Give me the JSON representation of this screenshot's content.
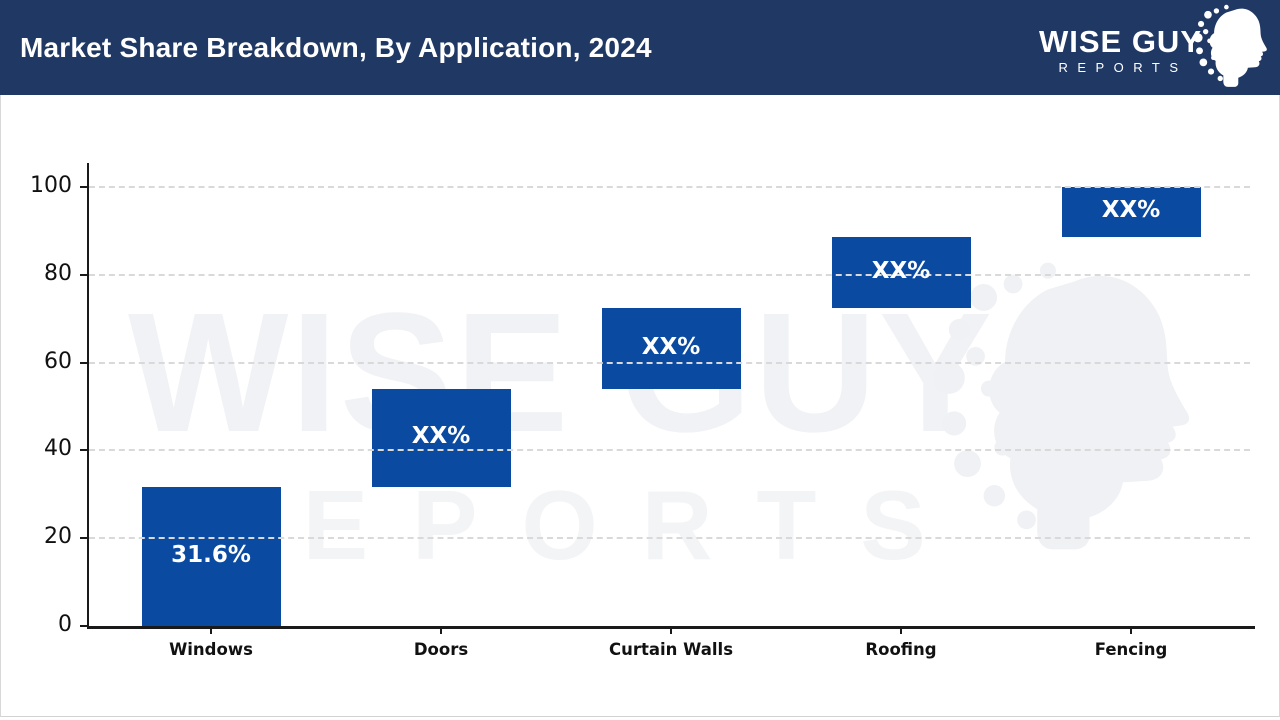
{
  "header": {
    "title": "Market Share Breakdown, By Application, 2024",
    "bg_color": "#1f3864",
    "logo": {
      "wordmark": "WISE GUY",
      "subtitle": "REPORTS"
    }
  },
  "watermark": {
    "wordmark": "WISE GUY",
    "subtitle": "REPORTS"
  },
  "chart_data": {
    "type": "bar",
    "subtype": "waterfall",
    "title": "Market Share Breakdown, By Application, 2024",
    "xlabel": "",
    "ylabel": "",
    "categories": [
      "Windows",
      "Doors",
      "Curtain Walls",
      "Roofing",
      "Fencing"
    ],
    "series": [
      {
        "name": "Market share (%)",
        "segments": [
          {
            "category": "Windows",
            "start": 0,
            "end": 31.6,
            "label": "31.6%"
          },
          {
            "category": "Doors",
            "start": 31.6,
            "end": 54.0,
            "label": "XX%"
          },
          {
            "category": "Curtain Walls",
            "start": 54.0,
            "end": 72.4,
            "label": "XX%"
          },
          {
            "category": "Roofing",
            "start": 72.4,
            "end": 88.6,
            "label": "XX%"
          },
          {
            "category": "Fencing",
            "start": 88.6,
            "end": 100,
            "label": "XX%"
          }
        ]
      }
    ],
    "yticks": [
      0,
      20,
      40,
      60,
      80,
      100
    ],
    "ylim": [
      0,
      105.5
    ],
    "grid": {
      "horizontal": true,
      "style": "dashed",
      "color": "#d9d9d9",
      "drawn_above_bars": true
    },
    "legend": "none",
    "bar_color": "#0b4aa1",
    "bar_label_color": "#ffffff",
    "axis_color": "#1a1a1a"
  }
}
